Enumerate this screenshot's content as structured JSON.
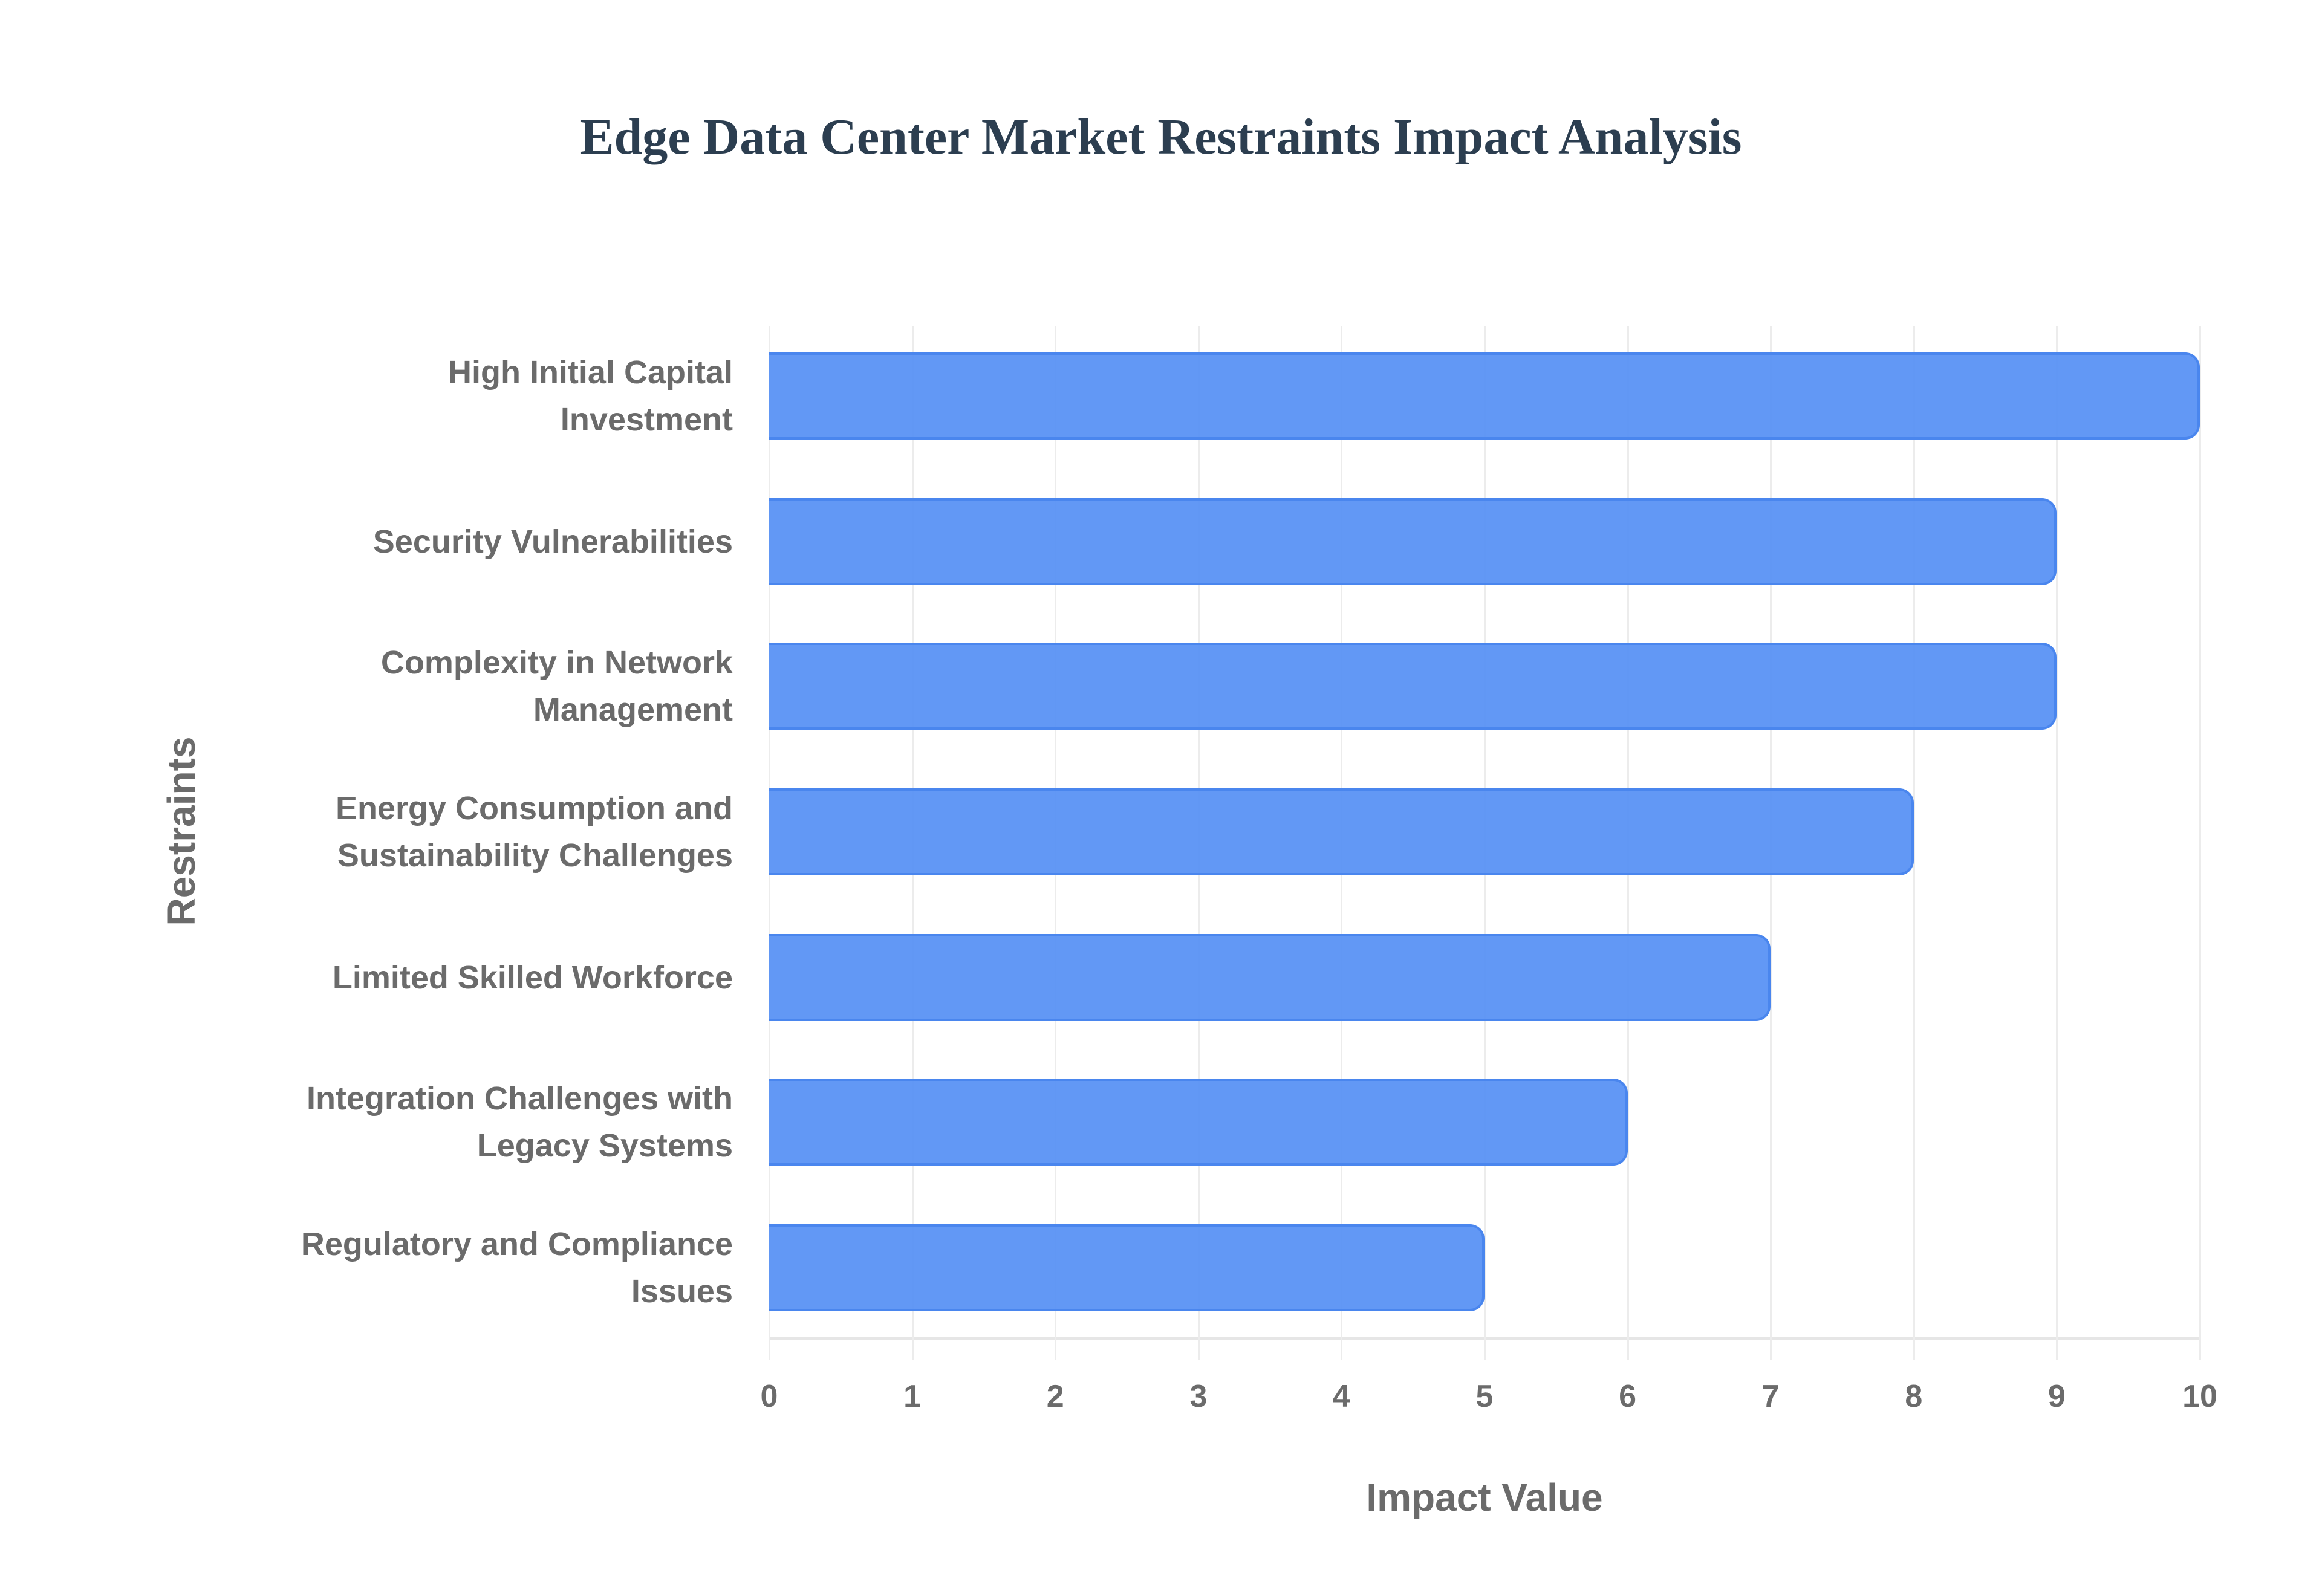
{
  "chart_data": {
    "type": "bar",
    "orientation": "horizontal",
    "title": "Edge Data Center Market Restraints Impact Analysis",
    "xlabel": "Impact Value",
    "ylabel": "Restraints",
    "categories": [
      "High Initial Capital Investment",
      "Security Vulnerabilities",
      "Complexity in Network Management",
      "Energy Consumption and Sustainability Challenges",
      "Limited Skilled Workforce",
      "Integration Challenges with Legacy Systems",
      "Regulatory and Compliance Issues"
    ],
    "values": [
      10,
      9,
      9,
      8,
      7,
      6,
      5
    ],
    "xlim": [
      0,
      10
    ],
    "xticks": [
      "0",
      "1",
      "2",
      "3",
      "4",
      "5",
      "6",
      "7",
      "8",
      "9",
      "10"
    ],
    "grid": true,
    "legend": null,
    "bar_color": "#5892f4",
    "bar_border_color": "#4a86ee"
  },
  "labels": {
    "title": "Edge Data Center Market Restraints Impact Analysis",
    "x_title": "Impact Value",
    "y_title": "Restraints",
    "categories": [
      [
        "High Initial Capital",
        "Investment"
      ],
      [
        "Security Vulnerabilities"
      ],
      [
        "Complexity in Network",
        "Management"
      ],
      [
        "Energy Consumption and",
        "Sustainability Challenges"
      ],
      [
        "Limited Skilled Workforce"
      ],
      [
        "Integration Challenges with",
        "Legacy Systems"
      ],
      [
        "Regulatory and Compliance",
        "Issues"
      ]
    ]
  },
  "colors": {
    "title": "#2c3e50",
    "axis_text": "#6b6b6b",
    "grid": "#ececec"
  }
}
